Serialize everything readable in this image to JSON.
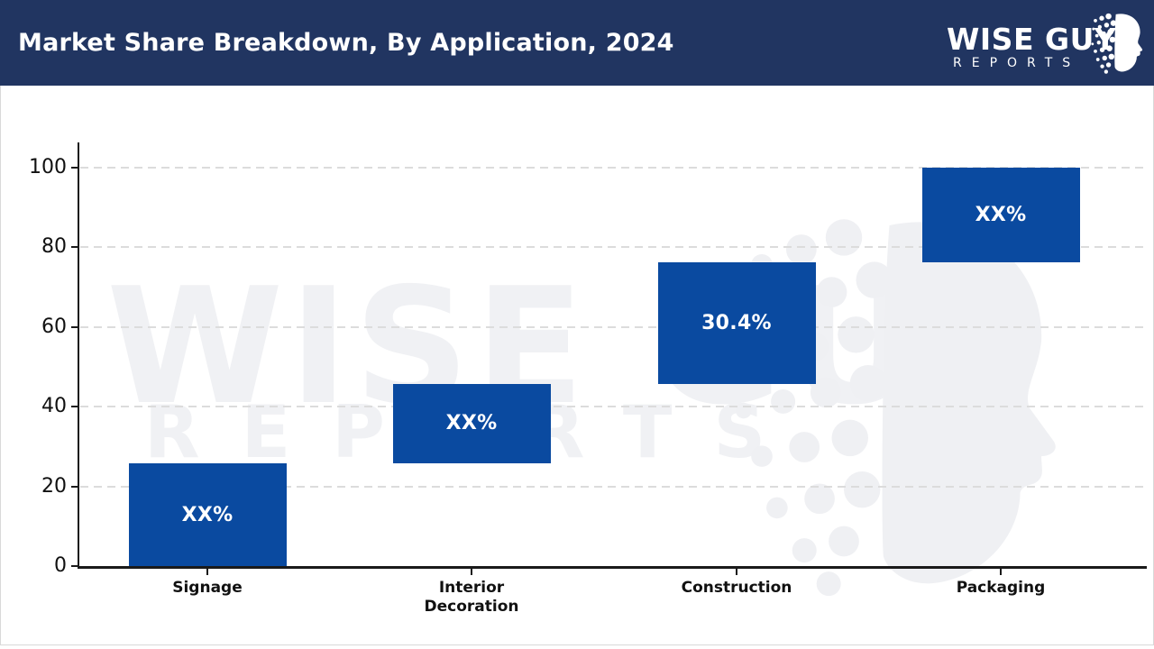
{
  "header": {
    "title": "Market Share Breakdown, By Application, 2024",
    "background_color": "#213561",
    "logo": {
      "brand_line1": "WISE GUY",
      "brand_line2": "REPORTS"
    }
  },
  "watermark": {
    "line1": "WISE GU",
    "line2": "REPORTS"
  },
  "chart_data": {
    "type": "bar",
    "variant": "floating-segment-waterfall",
    "title": "Market Share Breakdown, By Application, 2024",
    "categories": [
      "Signage",
      "Interior Decoration",
      "Construction",
      "Packaging"
    ],
    "segments": [
      {
        "category": "Signage",
        "from": 0,
        "to": 25.7,
        "label": "XX%"
      },
      {
        "category": "Interior Decoration",
        "from": 25.7,
        "to": 45.8,
        "label": "XX%"
      },
      {
        "category": "Construction",
        "from": 45.8,
        "to": 76.2,
        "label": "30.4%"
      },
      {
        "category": "Packaging",
        "from": 76.2,
        "to": 100,
        "label": "XX%"
      }
    ],
    "ylim": [
      0,
      100
    ],
    "yticks": [
      0,
      20,
      40,
      60,
      80,
      100
    ],
    "xlabel": "",
    "ylabel": "",
    "grid": "horizontal-dashed",
    "legend": "none",
    "bar_color": "#0a4aa0",
    "bar_label_color": "#ffffff",
    "axis_color": "#1a1a1a",
    "gridline_color": "#dcdcdc"
  }
}
